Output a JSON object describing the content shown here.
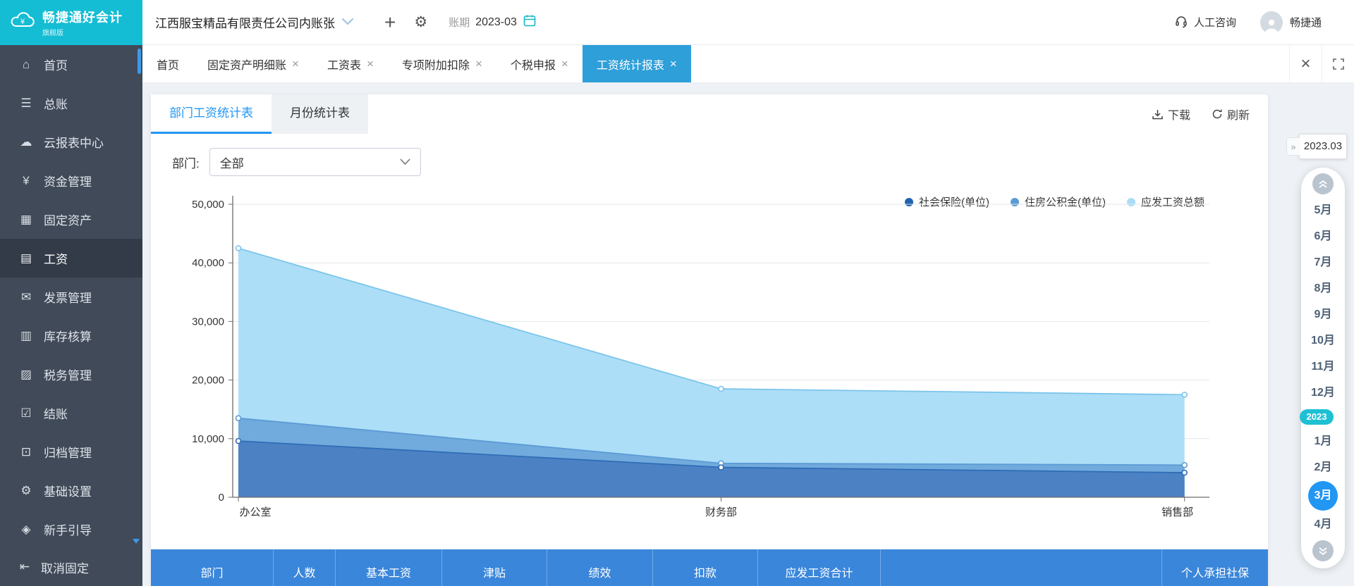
{
  "topbar": {
    "logo_title": "畅捷通好会计",
    "logo_subtitle": "旗舰版",
    "company": "江西服宝精品有限责任公司内账张",
    "period_label": "账期",
    "period_value": "2023-03",
    "support_label": "人工咨询",
    "user_name": "畅捷通"
  },
  "tabbar": {
    "tabs": [
      {
        "label": "首页",
        "closable": false,
        "active": false
      },
      {
        "label": "固定资产明细账",
        "closable": true,
        "active": false
      },
      {
        "label": "工资表",
        "closable": true,
        "active": false
      },
      {
        "label": "专项附加扣除",
        "closable": true,
        "active": false
      },
      {
        "label": "个税申报",
        "closable": true,
        "active": false
      },
      {
        "label": "工资统计报表",
        "closable": true,
        "active": true
      }
    ]
  },
  "sidebar": {
    "items": [
      {
        "label": "首页",
        "icon": "home-icon",
        "active": false
      },
      {
        "label": "总账",
        "icon": "ledger-icon",
        "active": false
      },
      {
        "label": "云报表中心",
        "icon": "cloud-report-icon",
        "active": false
      },
      {
        "label": "资金管理",
        "icon": "funds-icon",
        "active": false
      },
      {
        "label": "固定资产",
        "icon": "fixed-assets-icon",
        "active": false
      },
      {
        "label": "工资",
        "icon": "salary-icon",
        "active": true
      },
      {
        "label": "发票管理",
        "icon": "invoice-icon",
        "active": false
      },
      {
        "label": "库存核算",
        "icon": "inventory-icon",
        "active": false
      },
      {
        "label": "税务管理",
        "icon": "tax-icon",
        "active": false
      },
      {
        "label": "结账",
        "icon": "closing-icon",
        "active": false
      },
      {
        "label": "归档管理",
        "icon": "archive-icon",
        "active": false
      },
      {
        "label": "基础设置",
        "icon": "settings-icon",
        "active": false
      },
      {
        "label": "新手引导",
        "icon": "guide-icon",
        "active": false
      }
    ],
    "pin_label": "取消固定"
  },
  "content": {
    "subtabs": [
      {
        "label": "部门工资统计表",
        "active": true
      },
      {
        "label": "月份统计表",
        "active": false
      }
    ],
    "download_label": "下载",
    "refresh_label": "刷新",
    "filter_label": "部门:",
    "filter_value": "全部"
  },
  "chart_data": {
    "type": "area",
    "title": "",
    "xlabel": "",
    "ylabel": "",
    "categories": [
      "办公室",
      "财务部",
      "销售部"
    ],
    "series": [
      {
        "name": "应发工资总额",
        "values": [
          42500,
          18500,
          17500
        ],
        "fill": "#a9dcf7",
        "line": "#7cc5eb"
      },
      {
        "name": "住房公积金(单位)",
        "values": [
          13500,
          5800,
          5500
        ],
        "fill": "#6ea6da",
        "line": "#5b9bd5"
      },
      {
        "name": "社会保险(单位)",
        "values": [
          9600,
          5100,
          4200
        ],
        "fill": "#4a80c2",
        "line": "#2f6db6"
      }
    ],
    "legend": [
      {
        "name": "社会保险(单位)",
        "color": "#1f63ae"
      },
      {
        "name": "住房公积金(单位)",
        "color": "#5b9bd5"
      },
      {
        "name": "应发工资总额",
        "color": "#a9dcf7"
      }
    ],
    "ylim": [
      0,
      50000
    ],
    "ytick_step": 10000,
    "grid": true,
    "legend_position": "top-right"
  },
  "table": {
    "columns": [
      "部门",
      "人数",
      "基本工资",
      "津贴",
      "绩效",
      "扣款",
      "应发工资合计",
      "",
      "个人承担社保"
    ]
  },
  "month_panel": {
    "current": "2023.03",
    "items": [
      {
        "label": "5月"
      },
      {
        "label": "6月"
      },
      {
        "label": "7月"
      },
      {
        "label": "8月"
      },
      {
        "label": "9月"
      },
      {
        "label": "10月"
      },
      {
        "label": "11月"
      },
      {
        "label": "12月"
      },
      {
        "label": "2023",
        "badge": true
      },
      {
        "label": "1月"
      },
      {
        "label": "2月"
      },
      {
        "label": "3月",
        "active": true
      },
      {
        "label": "4月"
      }
    ]
  },
  "colors": {
    "brand_teal": "#14bdd4",
    "active_tab_blue": "#2e9fd9",
    "subtab_accent": "#2196f3",
    "month_active": "#2196f3",
    "year_badge": "#1fc0d4",
    "table_header_blue": "#3a86da",
    "sidebar_bg": "#414a59"
  }
}
